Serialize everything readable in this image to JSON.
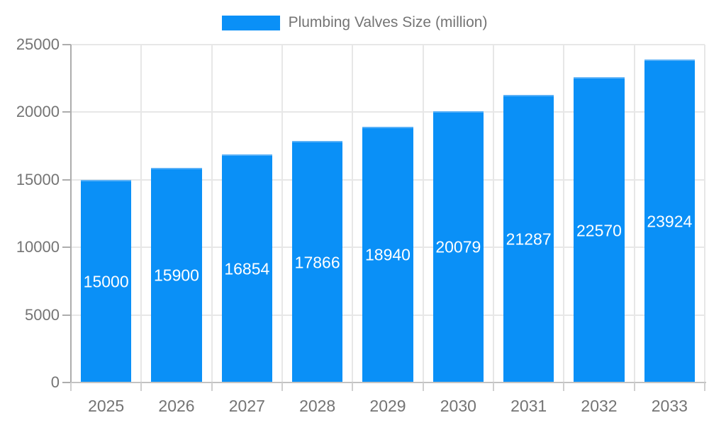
{
  "legend": {
    "label": "Plumbing Valves Size (million)"
  },
  "colors": {
    "bar": "#0a90f7",
    "bar_border_top": "#5ab1f7",
    "grid": "#e7e7e7",
    "axis": "#adadad",
    "tick_text": "#747474",
    "value_label": "#ffffff",
    "background": "#ffffff"
  },
  "chart_data": {
    "type": "bar",
    "title": "Plumbing Valves Size (million)",
    "categories": [
      "2025",
      "2026",
      "2027",
      "2028",
      "2029",
      "2030",
      "2031",
      "2032",
      "2033"
    ],
    "values": [
      15000,
      15900,
      16854,
      17866,
      18940,
      20079,
      21287,
      22570,
      23924
    ],
    "series_name": "Plumbing Valves Size (million)",
    "xlabel": "",
    "ylabel": "",
    "ylim": [
      0,
      25000
    ],
    "y_ticks": [
      0,
      5000,
      10000,
      15000,
      20000,
      25000
    ],
    "grid": true,
    "legend_position": "top",
    "bar_labels_shown": true,
    "bar_label_placement": "center"
  }
}
